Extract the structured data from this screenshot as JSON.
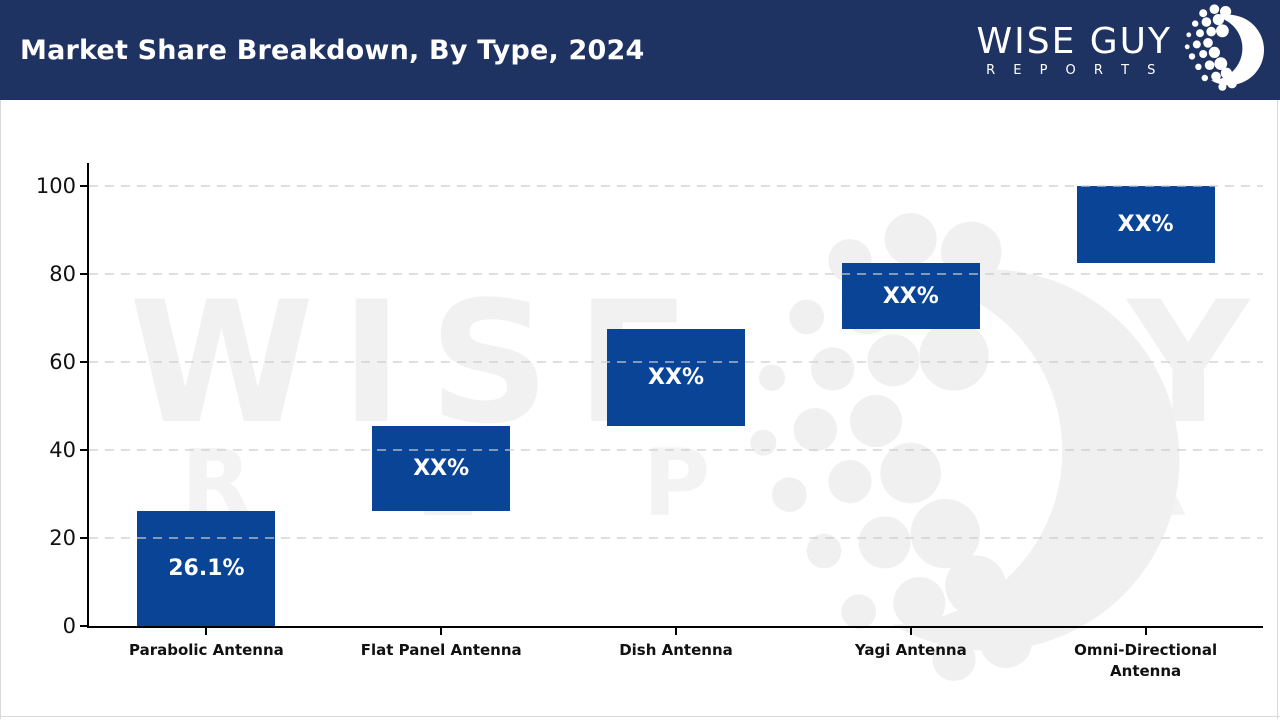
{
  "header": {
    "title": "Market Share Breakdown, By Type, 2024",
    "logo": {
      "line1": "WISE GUY",
      "line2": "R E P O R T S"
    }
  },
  "watermark": {
    "line1": "WISE GUY",
    "line2": "R E P O R T S"
  },
  "chart_data": {
    "type": "bar",
    "subtype": "waterfall",
    "title": "Market Share Breakdown, By Type, 2024",
    "categories": [
      "Parabolic Antenna",
      "Flat Panel Antenna",
      "Dish Antenna",
      "Yagi Antenna",
      "Omni-Directional Antenna"
    ],
    "segments": [
      {
        "category": "Parabolic Antenna",
        "start": 0,
        "end": 26.1,
        "label": "26.1%"
      },
      {
        "category": "Flat Panel Antenna",
        "start": 26.1,
        "end": 45.5,
        "label": "XX%"
      },
      {
        "category": "Dish Antenna",
        "start": 45.5,
        "end": 67.5,
        "label": "XX%"
      },
      {
        "category": "Yagi Antenna",
        "start": 67.5,
        "end": 82.5,
        "label": "XX%"
      },
      {
        "category": "Omni-Directional Antenna",
        "start": 82.5,
        "end": 100,
        "label": "XX%"
      }
    ],
    "ylim": [
      0,
      100
    ],
    "yticks": [
      0,
      20,
      40,
      60,
      80,
      100
    ],
    "xlabel": "",
    "ylabel": "",
    "grid": true,
    "legend": false,
    "bar_color": "#0a4496",
    "label_color": "#ffffff",
    "header_color": "#1f3363",
    "axis_color": "#000000"
  }
}
